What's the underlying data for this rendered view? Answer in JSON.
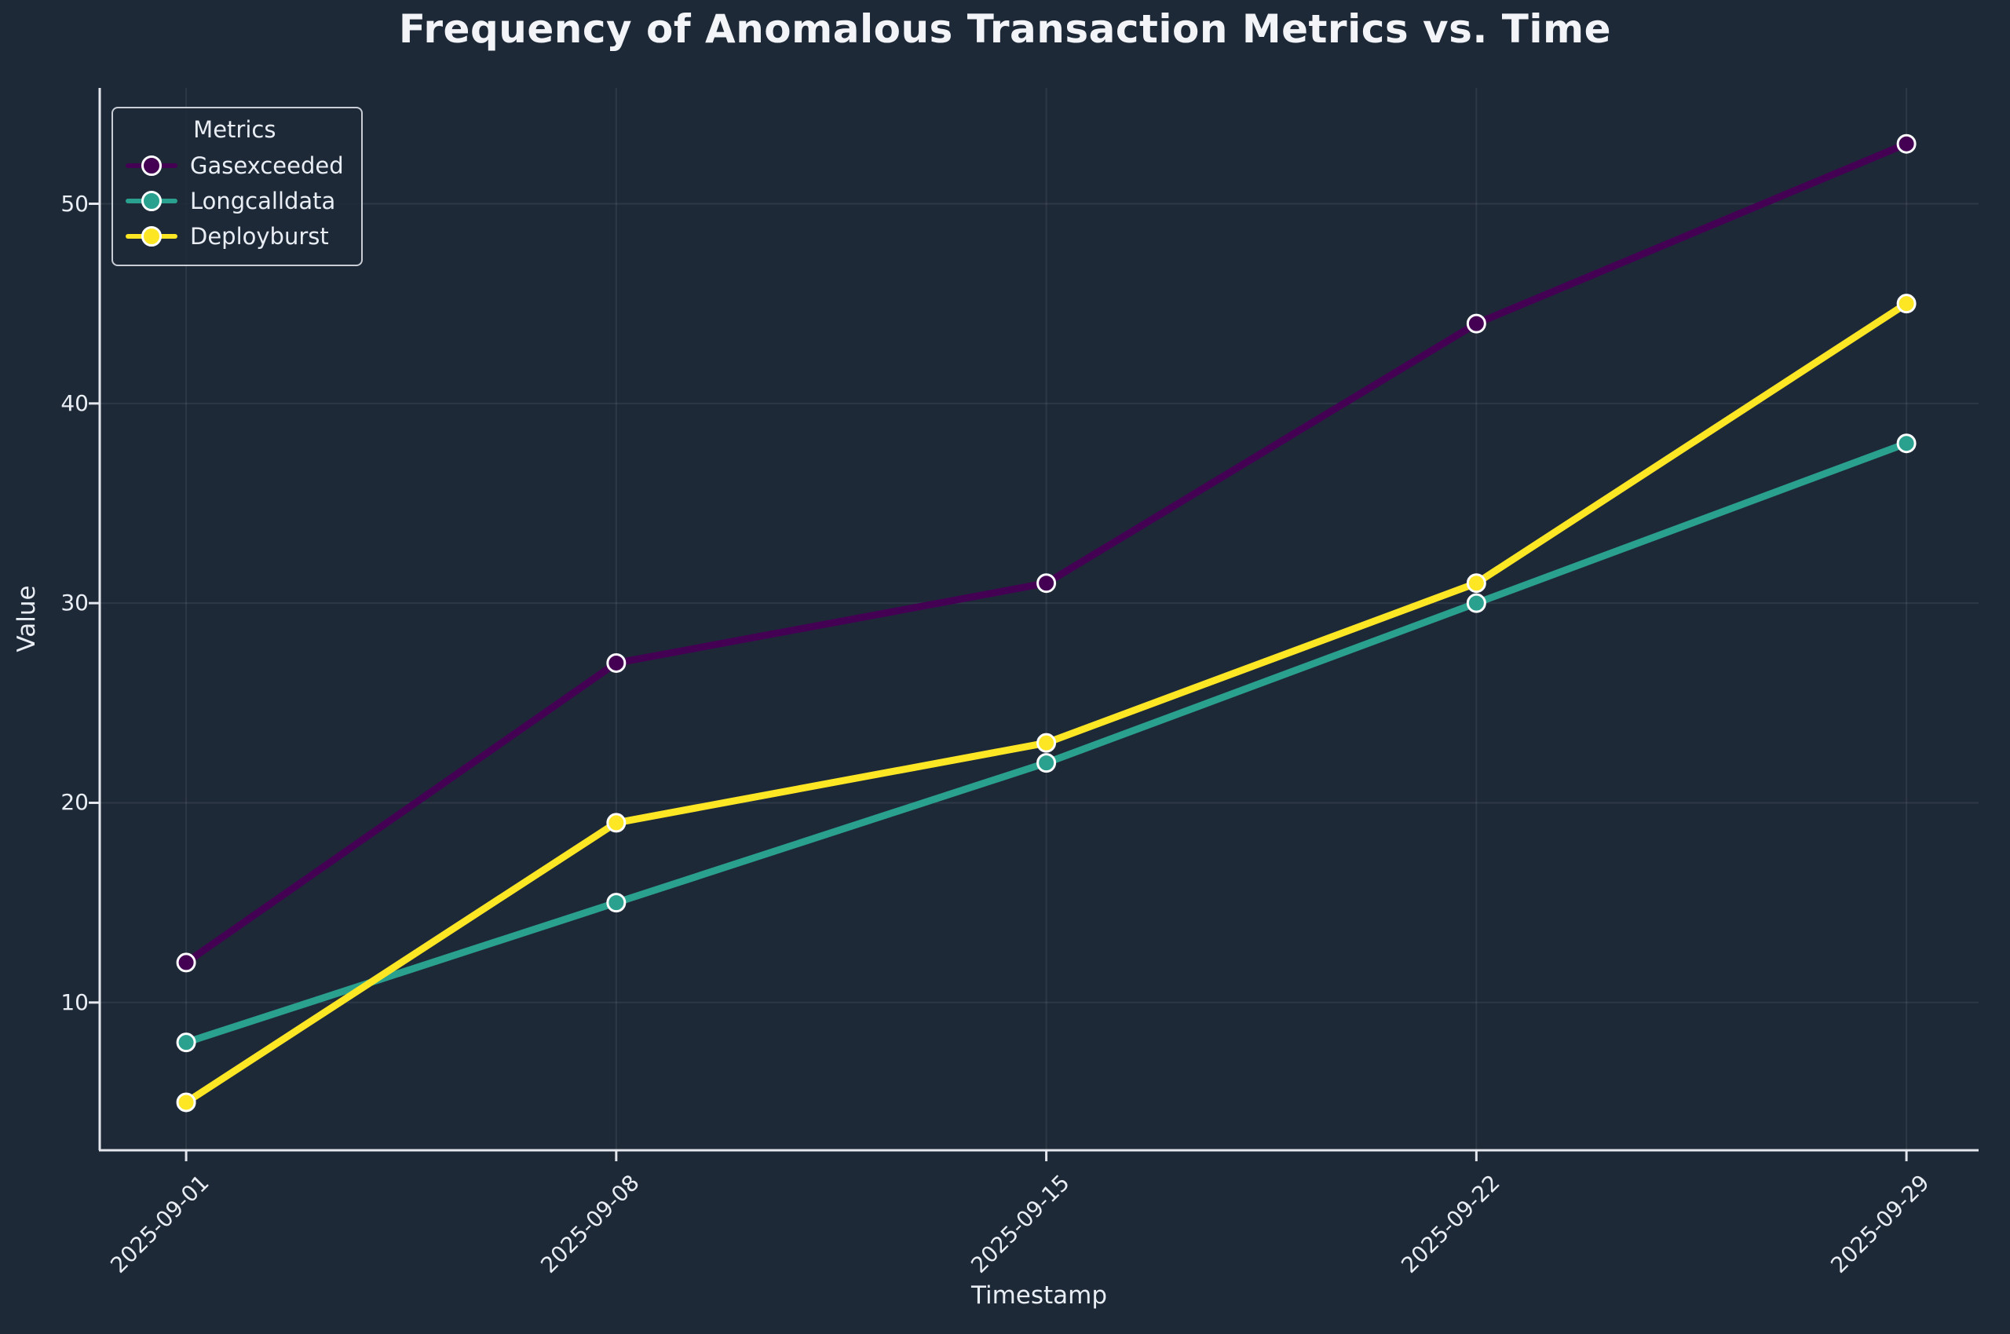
{
  "title": "Frequency of Anomalous Transaction Metrics vs. Time",
  "chart_data": {
    "type": "line",
    "x": [
      "2025-09-01",
      "2025-09-08",
      "2025-09-15",
      "2025-09-22",
      "2025-09-29"
    ],
    "series": [
      {
        "name": "Gasexceeded",
        "color": "#440154",
        "values": [
          12,
          27,
          31,
          44,
          53
        ]
      },
      {
        "name": "Longcalldata",
        "color": "#2aa08e",
        "values": [
          8,
          15,
          22,
          30,
          38
        ]
      },
      {
        "name": "Deployburst",
        "color": "#fde725",
        "values": [
          5,
          19,
          23,
          31,
          45
        ]
      }
    ],
    "xlabel": "Timestamp",
    "ylabel": "Value",
    "yticks": [
      10,
      20,
      30,
      40,
      50
    ],
    "ylim": [
      2.6,
      55.8
    ],
    "grid": true,
    "legend_title": "Metrics",
    "legend_position": "upper-left",
    "marker": "circle"
  },
  "colors": {
    "background": "#1e2938",
    "text": "#e9edf4",
    "grid": "rgba(255,255,255,0.07)",
    "axis": "#e4e7ee",
    "marker_edge": "#ffffff"
  }
}
